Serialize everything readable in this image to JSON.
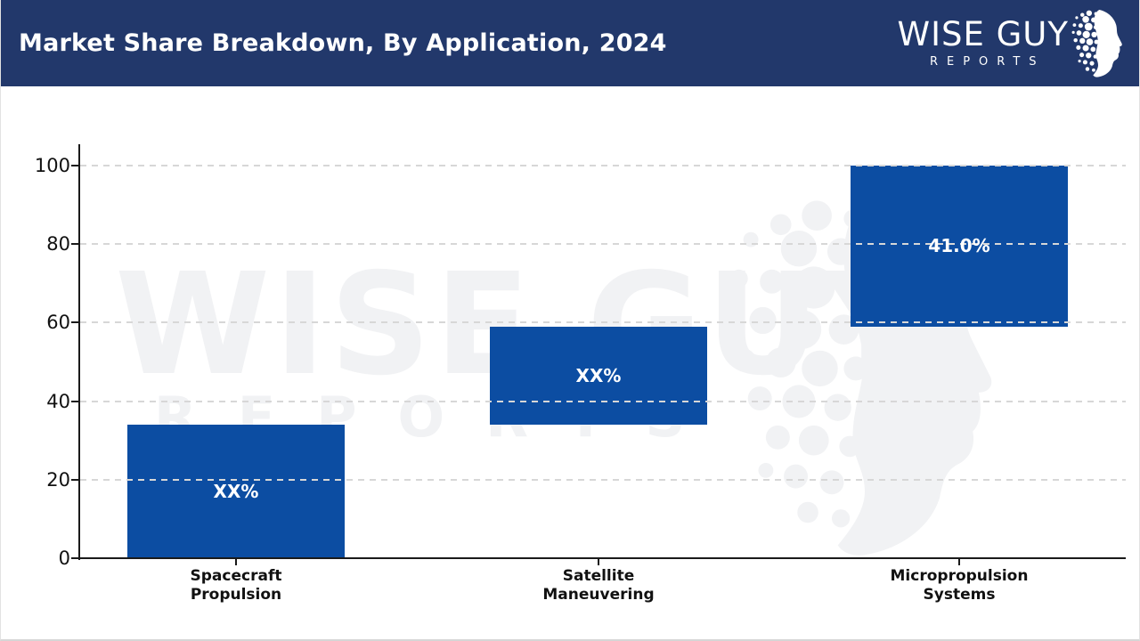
{
  "header": {
    "title": "Market Share Breakdown, By Application, 2024",
    "logo": {
      "wordmark": "WISE GUY",
      "subtext": "REPORTS"
    }
  },
  "watermark": {
    "wordmark": "WISE GUY",
    "subtext": "REPORTS"
  },
  "chart_data": {
    "type": "bar",
    "subtype": "floating-segment-breakdown",
    "title": "Market Share Breakdown, By Application, 2024",
    "unit": "percent market share",
    "categories": [
      "Spacecraft Propulsion",
      "Satellite Maneuvering",
      "Micropropulsion Systems"
    ],
    "category_label_lines": [
      [
        "Spacecraft",
        "Propulsion"
      ],
      [
        "Satellite",
        "Maneuvering"
      ],
      [
        "Micropropulsion",
        "Systems"
      ]
    ],
    "segments": [
      {
        "category": "Spacecraft Propulsion",
        "start": 0,
        "end": 34,
        "value_label": "XX%"
      },
      {
        "category": "Satellite Maneuvering",
        "start": 34,
        "end": 59,
        "value_label": "XX%"
      },
      {
        "category": "Micropropulsion Systems",
        "start": 59,
        "end": 100,
        "value_label": "41.0%"
      }
    ],
    "yticks": [
      0,
      20,
      40,
      60,
      80,
      100
    ],
    "ylim": [
      0,
      105
    ],
    "xlabel": "",
    "ylabel": "",
    "grid": "horizontal dashed",
    "legend": "none"
  },
  "colors": {
    "page_background": "#ffffff",
    "header_background": "#22386b",
    "title_text": "#ffffff",
    "bar_fill": "#0c4da2",
    "bar_value_label": "#ffffff",
    "axis": "#1a1a1a",
    "tick_label": "#111111",
    "category_label": "#111111",
    "gridline": "#d7d7d7",
    "watermark": "#f1f2f4"
  }
}
